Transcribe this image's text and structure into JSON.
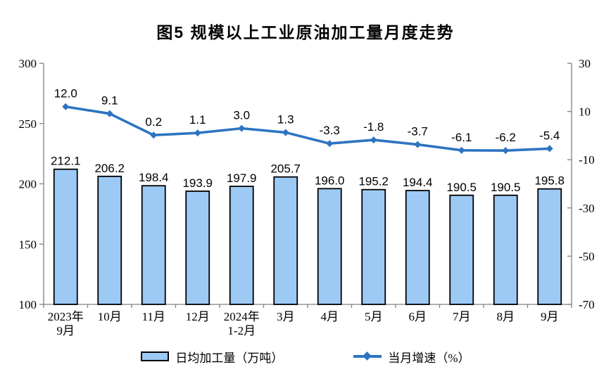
{
  "chart_data": {
    "type": "bar+line",
    "title": "图5 规模以上工业原油加工量月度走势",
    "categories": [
      [
        "2023年",
        "9月"
      ],
      [
        "10月"
      ],
      [
        "11月"
      ],
      [
        "12月"
      ],
      [
        "2024年",
        "1-2月"
      ],
      [
        "3月"
      ],
      [
        "4月"
      ],
      [
        "5月"
      ],
      [
        "6月"
      ],
      [
        "7月"
      ],
      [
        "8月"
      ],
      [
        "9月"
      ]
    ],
    "series": [
      {
        "name": "日均加工量（万吨）",
        "type": "bar",
        "axis": "left",
        "values": [
          212.1,
          206.2,
          198.4,
          193.9,
          197.9,
          205.7,
          196.0,
          195.2,
          194.4,
          190.5,
          190.5,
          195.8
        ],
        "color": "#9DC9F5",
        "border_color": "#000000"
      },
      {
        "name": "当月增速（%）",
        "type": "line",
        "axis": "right",
        "values": [
          12.0,
          9.1,
          0.2,
          1.1,
          3.0,
          1.3,
          -3.3,
          -1.8,
          -3.7,
          -6.1,
          -6.2,
          -5.4
        ],
        "color": "#2E74C0"
      }
    ],
    "left_axis": {
      "min": 100,
      "max": 300,
      "ticks": [
        100,
        150,
        200,
        250,
        300
      ]
    },
    "right_axis": {
      "min": -70,
      "max": 30,
      "ticks": [
        -70,
        -50,
        -30,
        -10,
        10,
        30
      ]
    },
    "axis_color": "#808080",
    "grid": false,
    "legend_position": "bottom",
    "value_decimals": 1
  }
}
